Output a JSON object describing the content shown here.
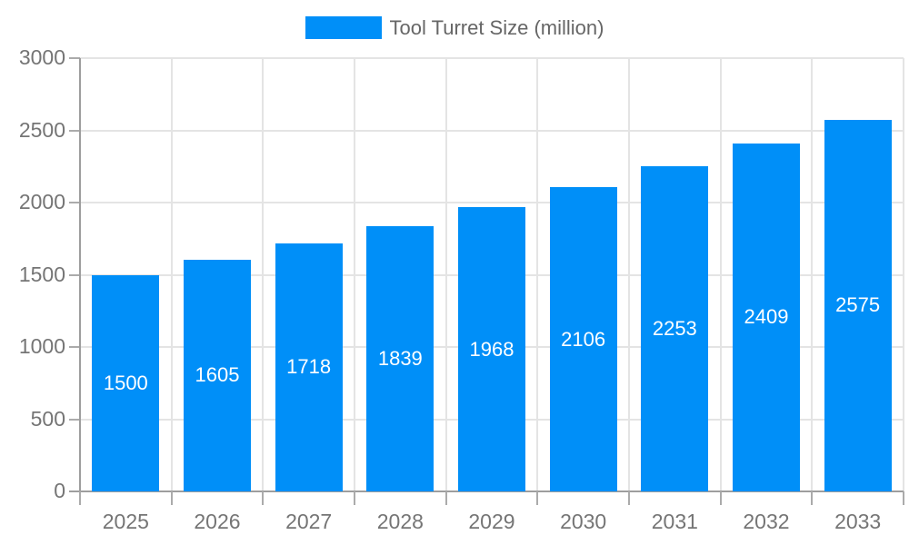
{
  "legend": {
    "label": "Tool Turret Size (million)",
    "swatch_color": "#008ff8",
    "position": "top"
  },
  "chart_data": {
    "type": "bar",
    "title": "Tool Turret Size (million)",
    "series": [
      {
        "name": "Tool Turret Size (million)",
        "values": [
          1500,
          1605,
          1718,
          1839,
          1968,
          2106,
          2253,
          2409,
          2575
        ]
      }
    ],
    "categories": [
      "2025",
      "2026",
      "2027",
      "2028",
      "2029",
      "2030",
      "2031",
      "2032",
      "2033"
    ],
    "xlabel": "",
    "ylabel": "",
    "ylim": [
      0,
      3000
    ],
    "yticks": [
      0,
      500,
      1000,
      1500,
      2000,
      2500,
      3000
    ],
    "grid": true,
    "legend_position": "top",
    "value_labels": "centered-inside-white"
  },
  "colors": {
    "bar": "#008ff8",
    "grid": "#e4e4e4",
    "axis": "#9e9e9e",
    "tick": "#ababab",
    "axis_text": "#757575",
    "legend_text": "#666666",
    "value_text": "#ffffff",
    "background": "#ffffff"
  }
}
